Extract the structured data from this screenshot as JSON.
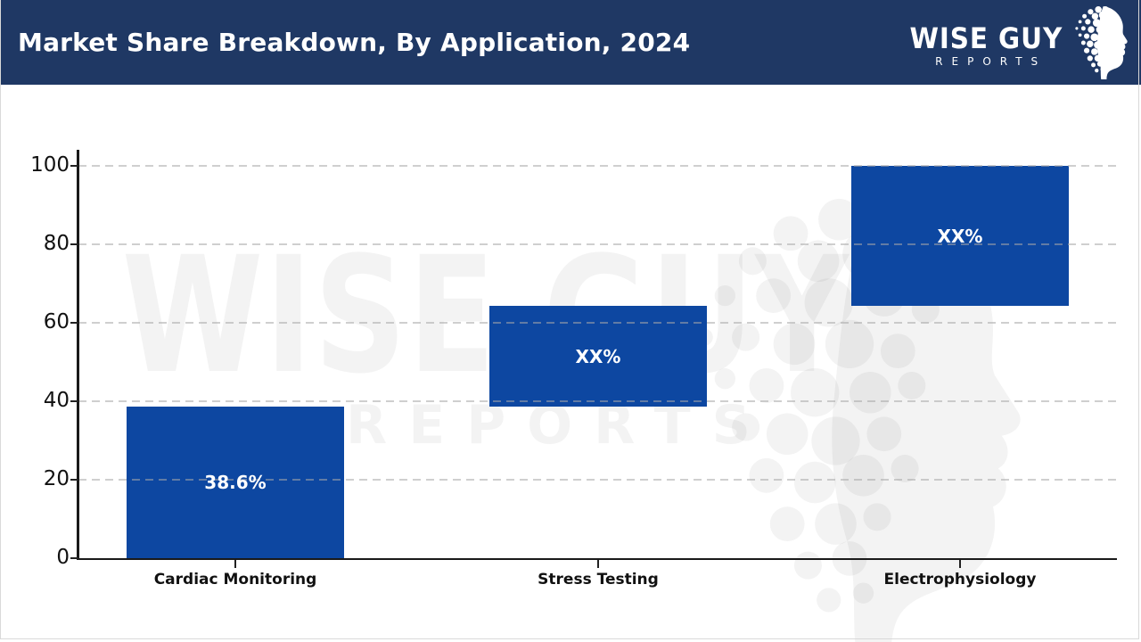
{
  "header": {
    "title": "Market Share Breakdown, By Application, 2024",
    "logo": {
      "line1": "WISE GUY",
      "line2": "REPORTS"
    }
  },
  "watermark": {
    "line1": "WISE GUY",
    "line2": "REPORTS"
  },
  "chart_data": {
    "type": "bar",
    "variant": "stacked-waterfall",
    "title": "Market Share Breakdown, By Application, 2024",
    "categories": [
      "Cardiac Monitoring",
      "Stress Testing",
      "Electrophysiology"
    ],
    "bars": [
      {
        "category": "Cardiac Monitoring",
        "from": 0,
        "to": 38.6,
        "label": "38.6%"
      },
      {
        "category": "Stress Testing",
        "from": 38.6,
        "to": 64.3,
        "label": "XX%"
      },
      {
        "category": "Electrophysiology",
        "from": 64.3,
        "to": 100,
        "label": "XX%"
      }
    ],
    "yticks": [
      0,
      20,
      40,
      60,
      80,
      100
    ],
    "ylim": [
      0,
      104
    ],
    "grid": {
      "horizontal": true,
      "style": "dashed"
    },
    "legend": "none",
    "bar_color": "#0D47A1",
    "bar_label_color": "#FFFFFF"
  },
  "colors": {
    "header_bg": "#1F3864",
    "bar_blue": "#0D47A1",
    "axis": "#1A1A1A",
    "gridline": "#C8C8C8",
    "watermark": "#F2F2F2",
    "card_border": "#D9D9D9"
  }
}
